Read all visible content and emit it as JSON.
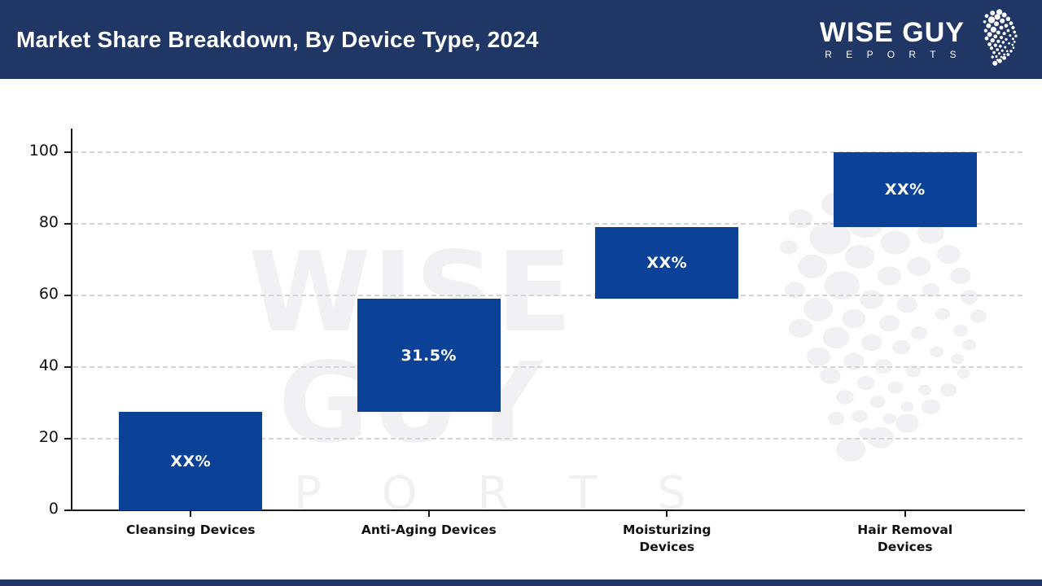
{
  "header": {
    "title": "Market Share Breakdown, By Device Type, 2024",
    "brand": {
      "name": "WISE GUY REPORTS",
      "line1": "WISE GUY",
      "line2": "R E P O R T S"
    }
  },
  "watermark": {
    "line1": "WISE GUY",
    "line2": "R E P O R T S"
  },
  "chart_data": {
    "type": "bar",
    "subtype": "waterfall",
    "title": "Market Share Breakdown, By Device Type, 2024",
    "categories": [
      "Cleansing Devices",
      "Anti-Aging Devices",
      "Moisturizing Devices",
      "Hair Removal Devices"
    ],
    "bars": [
      {
        "category": "Cleansing Devices",
        "start": 0,
        "end": 27.5,
        "value": "XX",
        "label": "XX%"
      },
      {
        "category": "Anti-Aging Devices",
        "start": 27.5,
        "end": 59,
        "value": 31.5,
        "label": "31.5%"
      },
      {
        "category": "Moisturizing Devices",
        "start": 59,
        "end": 79,
        "value": "XX",
        "label": "XX%"
      },
      {
        "category": "Hair Removal Devices",
        "start": 79,
        "end": 100,
        "value": "XX",
        "label": "XX%"
      }
    ],
    "xlabel": "",
    "ylabel": "",
    "ylim": [
      0,
      100
    ],
    "yticks": [
      0,
      20,
      40,
      60,
      80,
      100
    ],
    "grid": "horizontal-dashed",
    "legend": "none",
    "bar_color": "#0b4298"
  },
  "colors": {
    "header_bg": "#203664",
    "footer_bg": "#203664",
    "bar": "#0b4298",
    "grid": "#d4d4d4",
    "axis": "#000000",
    "watermark": "#f1f1f4"
  }
}
